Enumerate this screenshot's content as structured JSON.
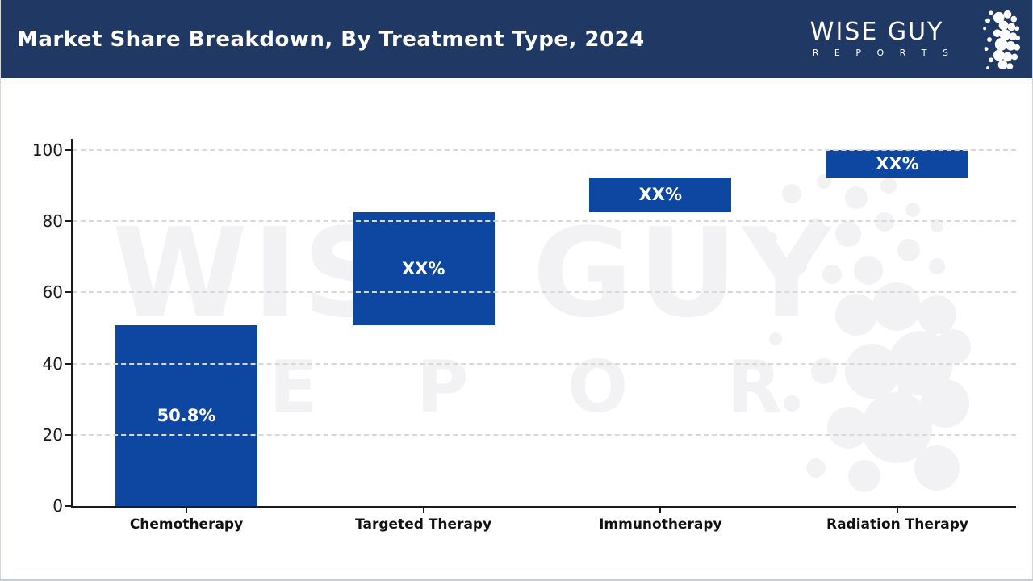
{
  "header": {
    "title": "Market Share Breakdown, By Treatment Type, 2024",
    "logo": {
      "wordmark": "WISE GUY",
      "subtext": "R E P O R T S"
    }
  },
  "watermark": {
    "line1": "WISE GUY",
    "line2": "R E P O R T S"
  },
  "chart_data": {
    "type": "bar",
    "subtype": "waterfall",
    "title": "Market Share Breakdown, By Treatment Type, 2024",
    "categories": [
      "Chemotherapy",
      "Targeted Therapy",
      "Immunotherapy",
      "Radiation Therapy"
    ],
    "segments": [
      {
        "category": "Chemotherapy",
        "start": 0,
        "end": 50.8,
        "label": "50.8%"
      },
      {
        "category": "Targeted Therapy",
        "start": 50.8,
        "end": 82.6,
        "label": "XX%"
      },
      {
        "category": "Immunotherapy",
        "start": 82.6,
        "end": 92.3,
        "label": "XX%"
      },
      {
        "category": "Radiation Therapy",
        "start": 92.3,
        "end": 100,
        "label": "XX%"
      }
    ],
    "yticks": [
      0,
      20,
      40,
      60,
      80,
      100
    ],
    "ylim": [
      0,
      100
    ],
    "xlabel": "",
    "ylabel": "",
    "grid": "horizontal dashed, drawn over bars",
    "legend": "none",
    "bar_color": "#0d47a1",
    "bar_label_color": "#ffffff"
  },
  "colors": {
    "header_bg": "#1f3864",
    "header_text": "#ffffff",
    "bar": "#0d47a1",
    "grid": "#d9d9d9",
    "axis": "#1a1a1a",
    "tick_text": "#1a1a1a",
    "watermark": "#f2f2f4",
    "frame_border": "#c6cad1"
  }
}
